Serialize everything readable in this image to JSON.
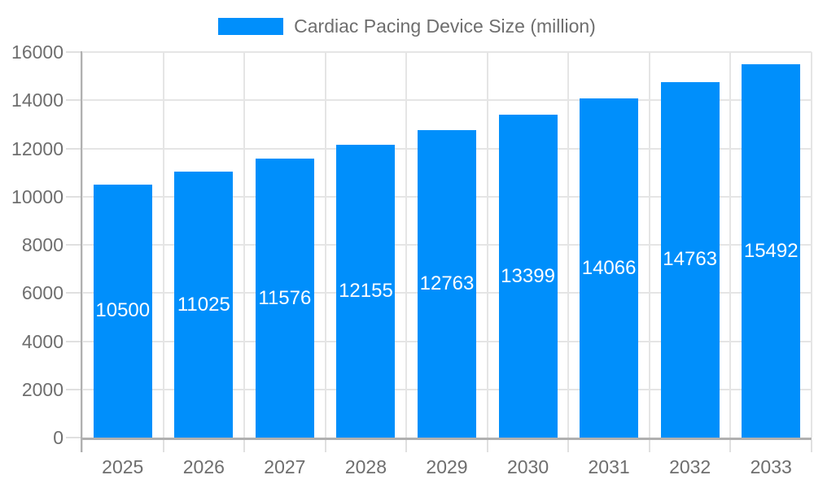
{
  "chart_data": {
    "type": "bar",
    "title": "Cardiac Pacing Device Size (million)",
    "series": [
      {
        "name": "Cardiac Pacing Device Size (million)",
        "values": [
          10500,
          11025,
          11576,
          12155,
          12763,
          13399,
          14066,
          14763,
          15492
        ]
      }
    ],
    "categories": [
      "2025",
      "2026",
      "2027",
      "2028",
      "2029",
      "2030",
      "2031",
      "2032",
      "2033"
    ],
    "values": [
      10500,
      11025,
      11576,
      12155,
      12763,
      13399,
      14066,
      14763,
      15492
    ],
    "bar_value_labels": [
      "10500",
      "11025",
      "11576",
      "12155",
      "12763",
      "13399",
      "14066",
      "14763",
      "15492"
    ],
    "xlabel": "",
    "ylabel": "",
    "ylim": [
      0,
      16000
    ],
    "ytick_step": 2000,
    "yticks": [
      0,
      2000,
      4000,
      6000,
      8000,
      10000,
      12000,
      14000,
      16000
    ],
    "grid": true,
    "legend_position": "top",
    "colors": {
      "bar": "#008FFB",
      "value_label": "#FFFFFF",
      "axis_label": "#6E6E6E",
      "legend_text": "#6E6E6E",
      "gridline": "#E5E5E5",
      "tick": "#E0E0E0",
      "axis_line": "#B0B0B0",
      "background": "#FFFFFF"
    }
  }
}
